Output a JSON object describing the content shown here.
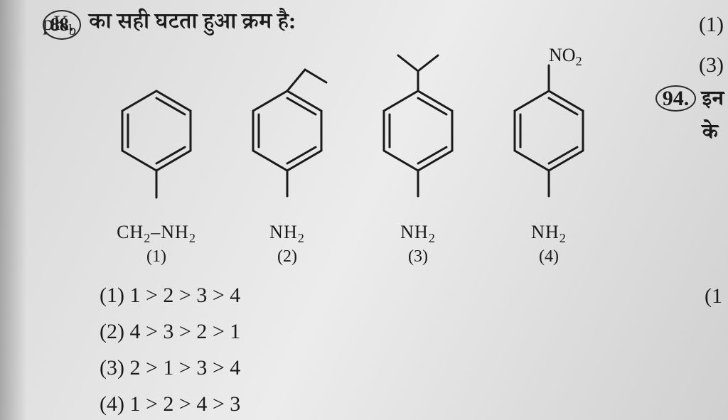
{
  "question": {
    "number": "88.",
    "pk_html": "pK<sub>b</sub>",
    "title": "का सही घटता हुआ क्रम है:"
  },
  "molecules": [
    {
      "bottom_html": "CH<sub>2</sub>–NH<sub>2</sub>",
      "index": "(1)"
    },
    {
      "bottom_html": "NH<sub>2</sub>",
      "index": "(2)"
    },
    {
      "bottom_html": "NH<sub>2</sub>",
      "index": "(3)"
    },
    {
      "bottom_html": "NH<sub>2</sub>",
      "index": "(4)"
    }
  ],
  "options": [
    "(1) 1 > 2 > 3 > 4",
    "(2) 4 > 3 > 2 > 1",
    "(3) 2 > 1 > 3 > 4",
    "(4) 1 > 2 > 4 > 3"
  ],
  "right_col": {
    "line1": "(1)",
    "line2": "(3)"
  },
  "q94": {
    "num": "94.",
    "t1": "इन",
    "t2": "के"
  },
  "bottom_right": "(1",
  "colors": {
    "stroke": "#1a1a1a",
    "stroke_width": 3
  }
}
